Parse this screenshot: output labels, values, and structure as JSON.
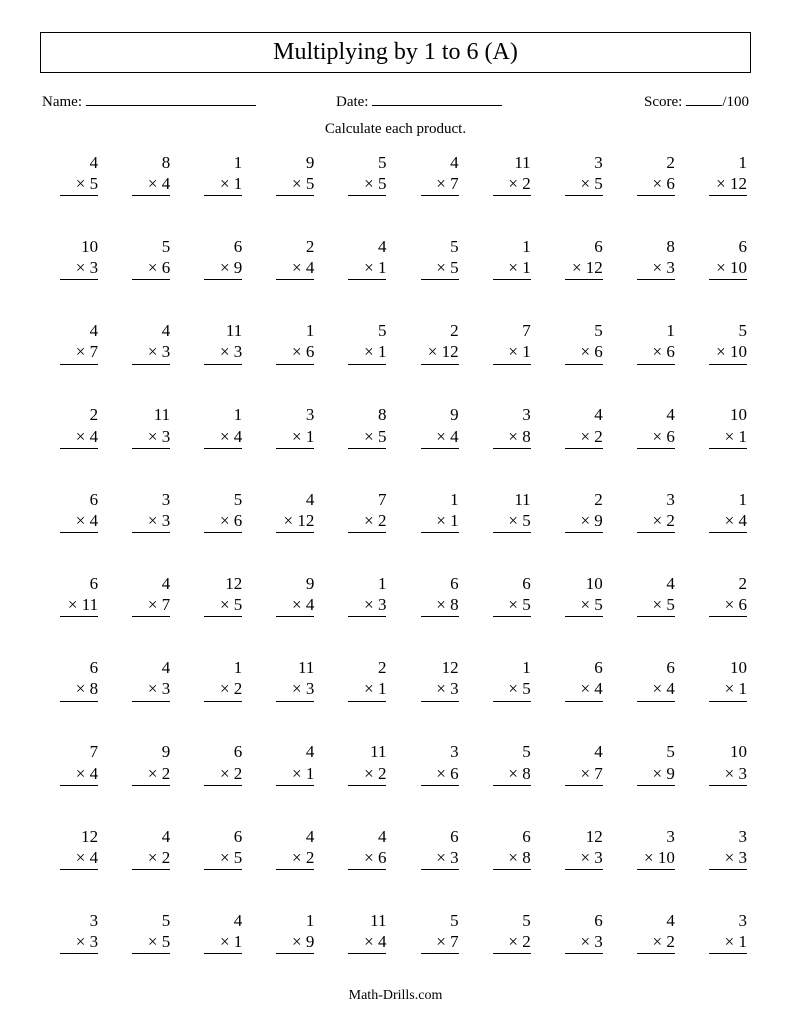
{
  "title": "Multiplying by 1 to 6 (A)",
  "labels": {
    "name": "Name:",
    "date": "Date:",
    "score": "Score:",
    "score_denom": "/100"
  },
  "instruction": "Calculate each product.",
  "footer": "Math-Drills.com",
  "style": {
    "columns": 10,
    "rows": 10,
    "operator": "×",
    "font_family": "Georgia, Times New Roman, serif",
    "title_fontsize": 24,
    "body_fontsize": 15,
    "problem_fontsize": 17,
    "text_color": "#000000",
    "background_color": "#ffffff",
    "border_color": "#000000"
  },
  "problems": [
    [
      [
        4,
        5
      ],
      [
        8,
        4
      ],
      [
        1,
        1
      ],
      [
        9,
        5
      ],
      [
        5,
        5
      ],
      [
        4,
        7
      ],
      [
        11,
        2
      ],
      [
        3,
        5
      ],
      [
        2,
        6
      ],
      [
        1,
        12
      ]
    ],
    [
      [
        10,
        3
      ],
      [
        5,
        6
      ],
      [
        6,
        9
      ],
      [
        2,
        4
      ],
      [
        4,
        1
      ],
      [
        5,
        5
      ],
      [
        1,
        1
      ],
      [
        6,
        12
      ],
      [
        8,
        3
      ],
      [
        6,
        10
      ]
    ],
    [
      [
        4,
        7
      ],
      [
        4,
        3
      ],
      [
        11,
        3
      ],
      [
        1,
        6
      ],
      [
        5,
        1
      ],
      [
        2,
        12
      ],
      [
        7,
        1
      ],
      [
        5,
        6
      ],
      [
        1,
        6
      ],
      [
        5,
        10
      ]
    ],
    [
      [
        2,
        4
      ],
      [
        11,
        3
      ],
      [
        1,
        4
      ],
      [
        3,
        1
      ],
      [
        8,
        5
      ],
      [
        9,
        4
      ],
      [
        3,
        8
      ],
      [
        4,
        2
      ],
      [
        4,
        6
      ],
      [
        10,
        1
      ]
    ],
    [
      [
        6,
        4
      ],
      [
        3,
        3
      ],
      [
        5,
        6
      ],
      [
        4,
        12
      ],
      [
        7,
        2
      ],
      [
        1,
        1
      ],
      [
        11,
        5
      ],
      [
        2,
        9
      ],
      [
        3,
        2
      ],
      [
        1,
        4
      ]
    ],
    [
      [
        6,
        11
      ],
      [
        4,
        7
      ],
      [
        12,
        5
      ],
      [
        9,
        4
      ],
      [
        1,
        3
      ],
      [
        6,
        8
      ],
      [
        6,
        5
      ],
      [
        10,
        5
      ],
      [
        4,
        5
      ],
      [
        2,
        6
      ]
    ],
    [
      [
        6,
        8
      ],
      [
        4,
        3
      ],
      [
        1,
        2
      ],
      [
        11,
        3
      ],
      [
        2,
        1
      ],
      [
        12,
        3
      ],
      [
        1,
        5
      ],
      [
        6,
        4
      ],
      [
        6,
        4
      ],
      [
        10,
        1
      ]
    ],
    [
      [
        7,
        4
      ],
      [
        9,
        2
      ],
      [
        6,
        2
      ],
      [
        4,
        1
      ],
      [
        11,
        2
      ],
      [
        3,
        6
      ],
      [
        5,
        8
      ],
      [
        4,
        7
      ],
      [
        5,
        9
      ],
      [
        10,
        3
      ]
    ],
    [
      [
        12,
        4
      ],
      [
        4,
        2
      ],
      [
        6,
        5
      ],
      [
        4,
        2
      ],
      [
        4,
        6
      ],
      [
        6,
        3
      ],
      [
        6,
        8
      ],
      [
        12,
        3
      ],
      [
        3,
        10
      ],
      [
        3,
        3
      ]
    ],
    [
      [
        3,
        3
      ],
      [
        5,
        5
      ],
      [
        4,
        1
      ],
      [
        1,
        9
      ],
      [
        11,
        4
      ],
      [
        5,
        7
      ],
      [
        5,
        2
      ],
      [
        6,
        3
      ],
      [
        4,
        2
      ],
      [
        3,
        1
      ]
    ]
  ]
}
